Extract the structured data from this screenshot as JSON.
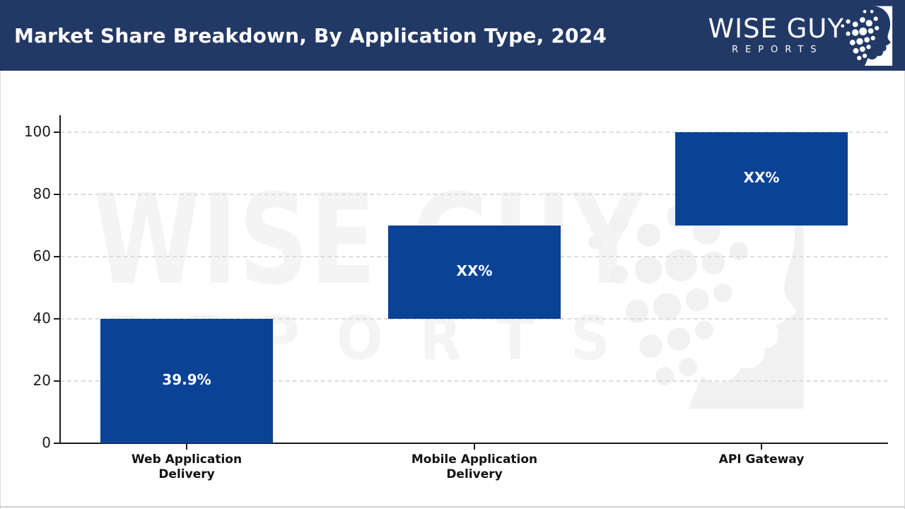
{
  "header": {
    "title": "Market Share Breakdown, By Application Type, 2024",
    "bg_color": "#223966",
    "logo": {
      "line1": "WISE GUY",
      "line2": "REPORTS"
    }
  },
  "watermark": {
    "line1": "WISE GUY",
    "line2": "REPORTS"
  },
  "chart_data": {
    "type": "bar",
    "subtype": "floating-waterfall-segments",
    "title": "Market Share Breakdown, By Application Type, 2024",
    "categories": [
      "Web Application Delivery",
      "Mobile Application Delivery",
      "API Gateway"
    ],
    "category_label_lines": [
      [
        "Web Application",
        "Delivery"
      ],
      [
        "Mobile Application",
        "Delivery"
      ],
      [
        "API Gateway"
      ]
    ],
    "segments": [
      {
        "category": "Web Application Delivery",
        "start": 0,
        "end": 39.9,
        "label": "39.9%"
      },
      {
        "category": "Mobile Application Delivery",
        "start": 39.9,
        "end": 69.9,
        "label": "XX%"
      },
      {
        "category": "API Gateway",
        "start": 69.9,
        "end": 100,
        "label": "XX%"
      }
    ],
    "ylim": [
      0,
      100
    ],
    "yticks": [
      0,
      20,
      40,
      60,
      80,
      100
    ],
    "grid": {
      "horizontal": true,
      "style": "dashed"
    },
    "legend": "none",
    "colors": {
      "bar": "#0a4296",
      "bar_label": "#ffffff",
      "axis": "#1a1a1a",
      "grid": "#dcdcdc",
      "header_bg": "#223966",
      "watermark": "#f4f4f4"
    }
  }
}
